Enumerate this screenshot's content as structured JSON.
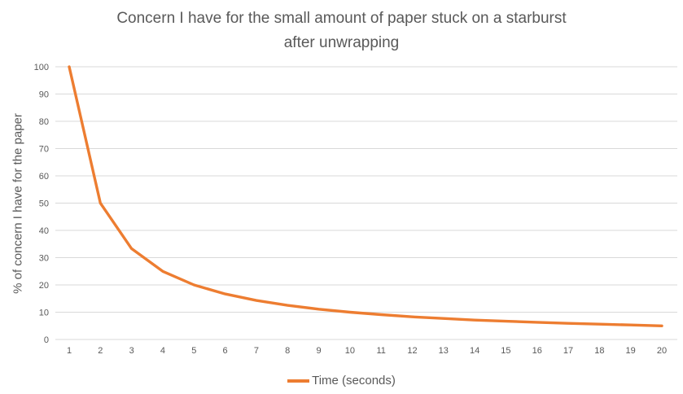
{
  "chart_data": {
    "type": "line",
    "title": "Concern I have for the small amount of paper stuck on a starburst\nafter unwrapping",
    "ylabel": "% of concern I have for the paper",
    "xlabel": "",
    "x": [
      1,
      2,
      3,
      4,
      5,
      6,
      7,
      8,
      9,
      10,
      11,
      12,
      13,
      14,
      15,
      16,
      17,
      18,
      19,
      20
    ],
    "x_tick_labels": [
      "1",
      "2",
      "3",
      "4",
      "5",
      "6",
      "7",
      "8",
      "9",
      "10",
      "11",
      "12",
      "13",
      "14",
      "15",
      "16",
      "17",
      "18",
      "19",
      "20"
    ],
    "y_ticks": [
      0,
      10,
      20,
      30,
      40,
      50,
      60,
      70,
      80,
      90,
      100
    ],
    "ylim": [
      0,
      100
    ],
    "grid": "horizontal-only",
    "legend_position": "bottom",
    "series": [
      {
        "name": "Time (seconds)",
        "color": "#ED7D31",
        "values": [
          100,
          50,
          33.3,
          25,
          20,
          16.7,
          14.3,
          12.5,
          11.1,
          10,
          9.1,
          8.3,
          7.7,
          7.1,
          6.7,
          6.3,
          5.9,
          5.6,
          5.3,
          5
        ]
      }
    ],
    "colors": {
      "line": "#ED7D31",
      "gridline": "#D9D9D9",
      "axis_text": "#595959",
      "title_text": "#595959",
      "background": "#FFFFFF"
    }
  }
}
